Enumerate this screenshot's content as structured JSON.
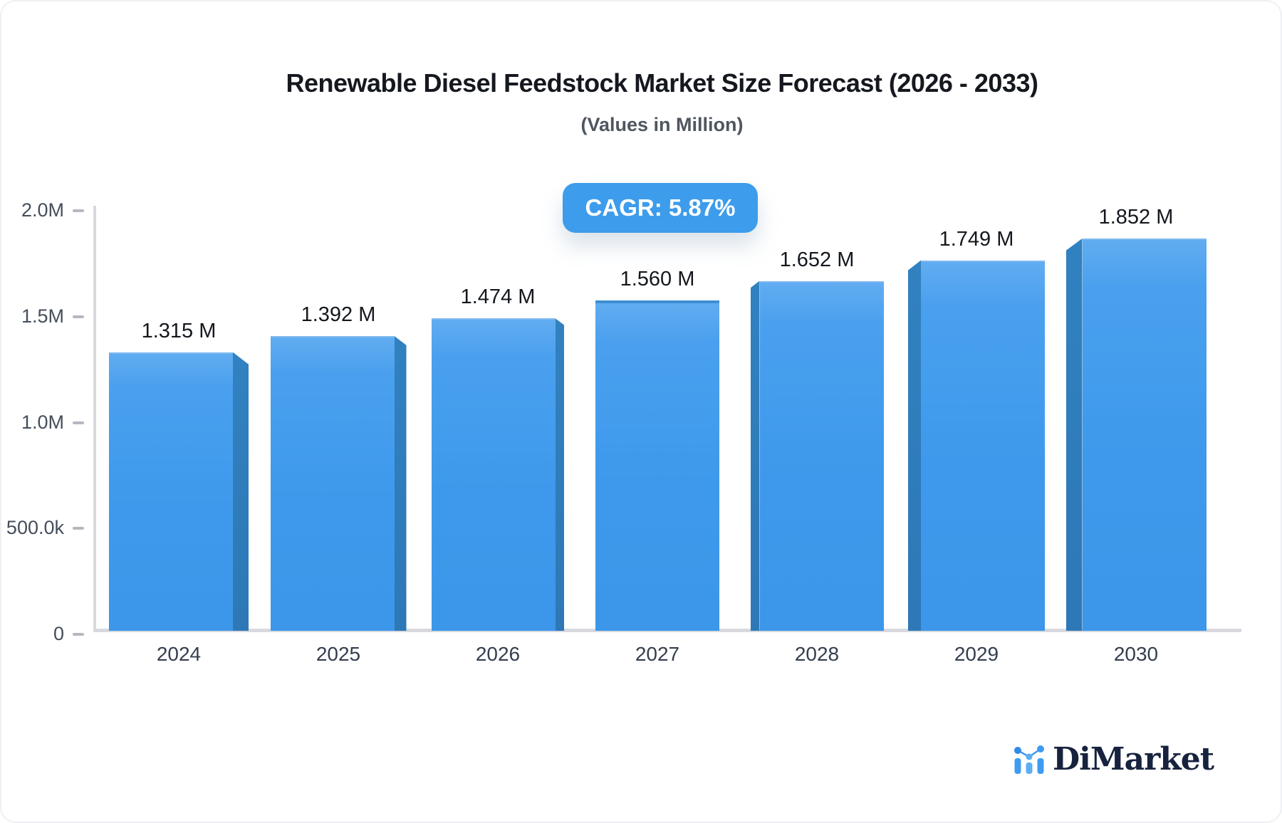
{
  "chart_data": {
    "type": "bar",
    "title": "Renewable Diesel Feedstock Market Size Forecast (2026 - 2033)",
    "subtitle": "(Values in Million)",
    "cagr_label": "CAGR: 5.87%",
    "categories": [
      "2024",
      "2025",
      "2026",
      "2027",
      "2028",
      "2029",
      "2030"
    ],
    "values_million": [
      1.315,
      1.392,
      1.474,
      1.56,
      1.652,
      1.749,
      1.852
    ],
    "bar_labels": [
      "1.315 M",
      "1.392 M",
      "1.474 M",
      "1.560 M",
      "1.652 M",
      "1.749 M",
      "1.852 M"
    ],
    "xlabel": "",
    "ylabel": "",
    "ylim_million": [
      0,
      2.0
    ],
    "y_ticks": [
      {
        "label": "2.0M",
        "value": 2.0
      },
      {
        "label": "1.5M",
        "value": 1.5
      },
      {
        "label": "1.0M",
        "value": 1.0
      },
      {
        "label": "500.0k",
        "value": 0.5
      },
      {
        "label": "0",
        "value": 0
      }
    ],
    "grid": "off",
    "legend": "none",
    "colors": {
      "bar_face_top": "#61acf1",
      "bar_face_bottom": "#3c96e9",
      "bar_side": "#2e78b7",
      "badge_bg": "#3d9ceb",
      "axis_line": "#d7d9de",
      "tick_dash": "#b4b8bf"
    }
  },
  "branding": {
    "name": "DiMarket",
    "logo_icon": "bar-chart-logo-icon",
    "logo_color": "#3f9bf0",
    "text_color": "#17223e"
  }
}
